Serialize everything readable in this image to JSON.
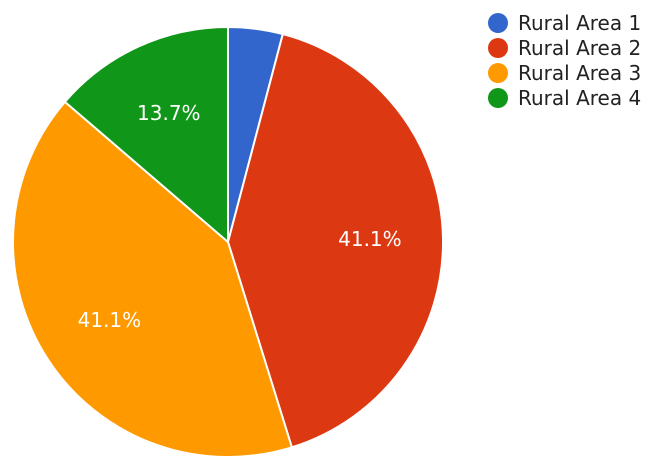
{
  "chart_data": {
    "type": "pie",
    "categories": [
      "Rural Area 1",
      "Rural Area 2",
      "Rural Area 3",
      "Rural Area 4"
    ],
    "values": [
      4.1,
      41.1,
      41.1,
      13.7
    ],
    "slice_labels": [
      "",
      "41.1%",
      "41.1%",
      "13.7%"
    ],
    "colors": [
      "#3366cc",
      "#dc3912",
      "#ff9900",
      "#109618"
    ],
    "legend_position": "right"
  }
}
